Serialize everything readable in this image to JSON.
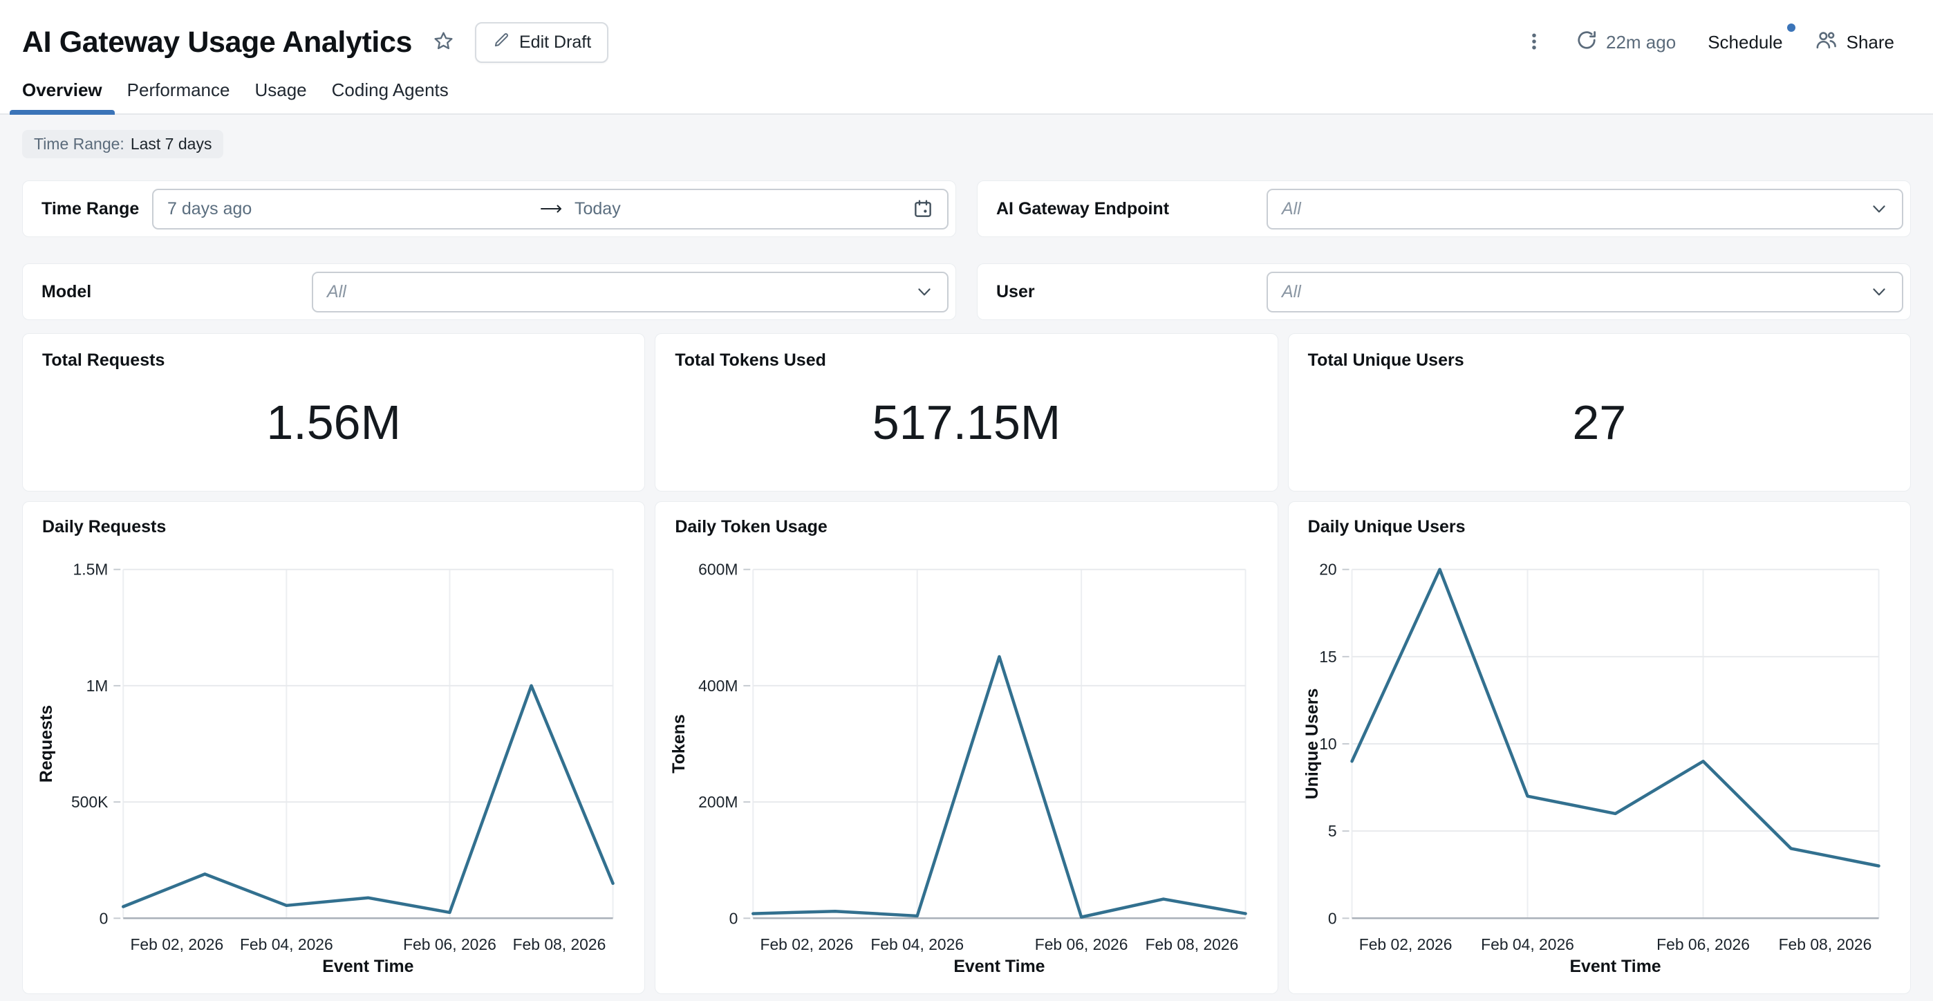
{
  "colors": {
    "accent_blue": "#3B74B8",
    "chart_line": "#32708F",
    "slate_icon": "#5B6B7B",
    "text_dark": "#0E1216",
    "gridline": "#E8EAED",
    "page_background": "#F5F6F8"
  },
  "header": {
    "title": "AI Gateway Usage Analytics",
    "edit_draft_label": "Edit Draft",
    "last_refresh": "22m ago",
    "schedule_label": "Schedule",
    "share_label": "Share"
  },
  "tabs": [
    {
      "label": "Overview",
      "active": true
    },
    {
      "label": "Performance",
      "active": false
    },
    {
      "label": "Usage",
      "active": false
    },
    {
      "label": "Coding Agents",
      "active": false
    }
  ],
  "applied_filters_chip": {
    "label": "Time Range:",
    "value": "Last 7 days"
  },
  "filters": {
    "time_range": {
      "label": "Time Range",
      "start": "7 days ago",
      "end": "Today"
    },
    "endpoint": {
      "label": "AI Gateway Endpoint",
      "value": "All"
    },
    "model": {
      "label": "Model",
      "value": "All"
    },
    "user": {
      "label": "User",
      "value": "All"
    }
  },
  "kpis": [
    {
      "title": "Total Requests",
      "value": "1.56M"
    },
    {
      "title": "Total Tokens Used",
      "value": "517.15M"
    },
    {
      "title": "Total Unique Users",
      "value": "27"
    }
  ],
  "chart_data": [
    {
      "type": "line",
      "title": "Daily Requests",
      "xlabel": "Event Time",
      "ylabel": "Requests",
      "x": [
        "Feb 02, 2026",
        "Feb 03, 2026",
        "Feb 04, 2026",
        "Feb 05, 2026",
        "Feb 06, 2026",
        "Feb 07, 2026",
        "Feb 08, 2026"
      ],
      "values": [
        50000,
        190000,
        55000,
        88000,
        25000,
        1000000,
        150000
      ],
      "ylim": [
        0,
        1500000
      ],
      "y_ticks": [
        {
          "value": 0,
          "label": "0"
        },
        {
          "value": 500000,
          "label": "500K"
        },
        {
          "value": 1000000,
          "label": "1M"
        },
        {
          "value": 1500000,
          "label": "1.5M"
        }
      ],
      "x_tick_indices": [
        0,
        2,
        4,
        6
      ],
      "grid": true,
      "legend": false,
      "line_color": "#32708F"
    },
    {
      "type": "line",
      "title": "Daily Token Usage",
      "xlabel": "Event Time",
      "ylabel": "Tokens",
      "x": [
        "Feb 02, 2026",
        "Feb 03, 2026",
        "Feb 04, 2026",
        "Feb 05, 2026",
        "Feb 06, 2026",
        "Feb 07, 2026",
        "Feb 08, 2026"
      ],
      "values": [
        8000000,
        12000000,
        4000000,
        450000000,
        2000000,
        33000000,
        8000000
      ],
      "ylim": [
        0,
        600000000
      ],
      "y_ticks": [
        {
          "value": 0,
          "label": "0"
        },
        {
          "value": 200000000,
          "label": "200M"
        },
        {
          "value": 400000000,
          "label": "400M"
        },
        {
          "value": 600000000,
          "label": "600M"
        }
      ],
      "x_tick_indices": [
        0,
        2,
        4,
        6
      ],
      "grid": true,
      "legend": false,
      "line_color": "#32708F"
    },
    {
      "type": "line",
      "title": "Daily Unique Users",
      "xlabel": "Event Time",
      "ylabel": "Unique Users",
      "x": [
        "Feb 02, 2026",
        "Feb 03, 2026",
        "Feb 04, 2026",
        "Feb 05, 2026",
        "Feb 06, 2026",
        "Feb 07, 2026",
        "Feb 08, 2026"
      ],
      "values": [
        9,
        20,
        7,
        6,
        9,
        4,
        3
      ],
      "ylim": [
        0,
        20
      ],
      "y_ticks": [
        {
          "value": 0,
          "label": "0"
        },
        {
          "value": 5,
          "label": "5"
        },
        {
          "value": 10,
          "label": "10"
        },
        {
          "value": 15,
          "label": "15"
        },
        {
          "value": 20,
          "label": "20"
        }
      ],
      "x_tick_indices": [
        0,
        2,
        4,
        6
      ],
      "grid": true,
      "legend": false,
      "line_color": "#32708F"
    }
  ]
}
